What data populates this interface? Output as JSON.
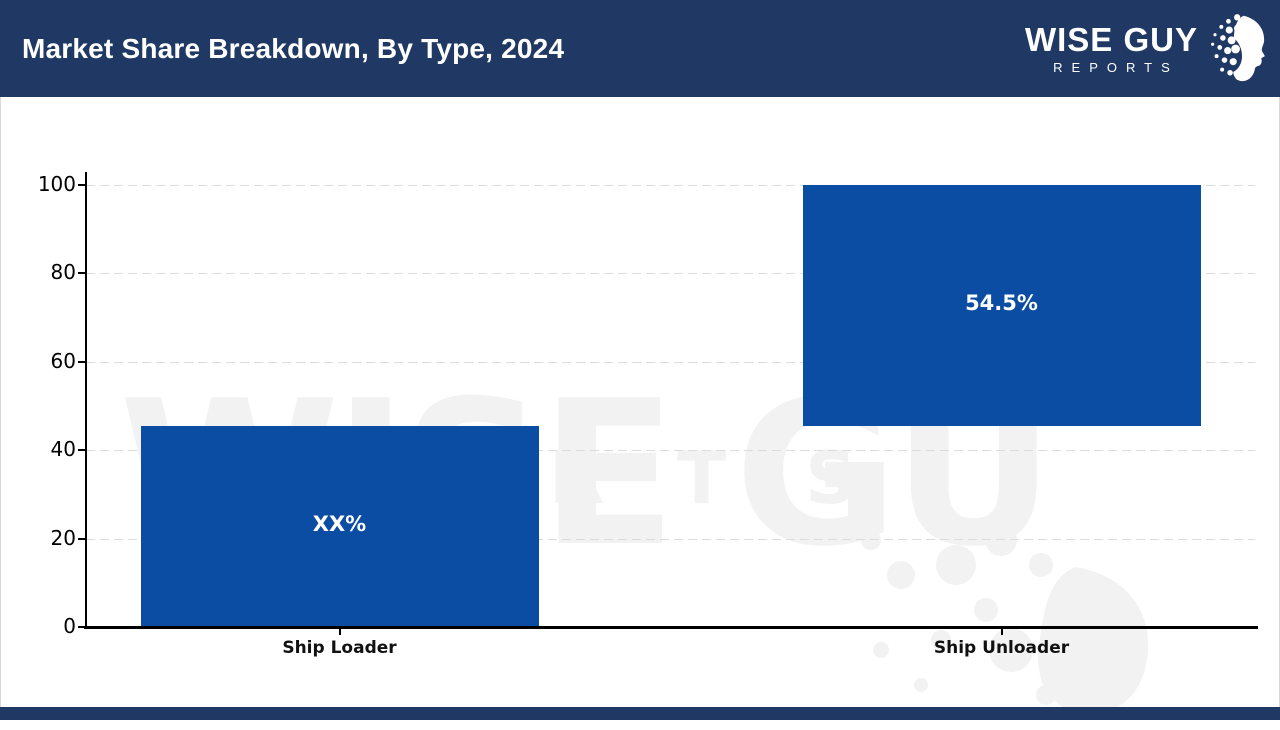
{
  "header": {
    "title": "Market Share Breakdown, By Type, 2024",
    "bg_color": "#203864",
    "logo": {
      "name": "WISE GUY",
      "tagline": "REPORTS",
      "icon": "dotted-face-logo"
    }
  },
  "chart_data": {
    "type": "bar",
    "variant": "stacked-percentage-waterfall",
    "title": "Market Share Breakdown, By Type, 2024",
    "categories": [
      "Ship Loader",
      "Ship Unloader"
    ],
    "segments": [
      {
        "category": "Ship Loader",
        "start": 0,
        "end": 45.5,
        "label": "XX%"
      },
      {
        "category": "Ship Unloader",
        "start": 45.5,
        "end": 100,
        "label": "54.5%"
      }
    ],
    "yticks": [
      0,
      20,
      40,
      60,
      80,
      100
    ],
    "ytick_labels": [
      "0",
      "20",
      "40",
      "60",
      "80",
      "100"
    ],
    "ylim": [
      0,
      103
    ],
    "xlabel": "",
    "ylabel": "",
    "grid": "horizontal-dashed",
    "legend": "none",
    "bar_color": "#0b4da2",
    "bar_label_color": "#ffffff",
    "axis_color": "#000000"
  },
  "watermark": {
    "primary": "WISE GU",
    "letters": [
      "R",
      "T",
      "S"
    ]
  },
  "footer": {
    "bg_color": "#203864"
  }
}
